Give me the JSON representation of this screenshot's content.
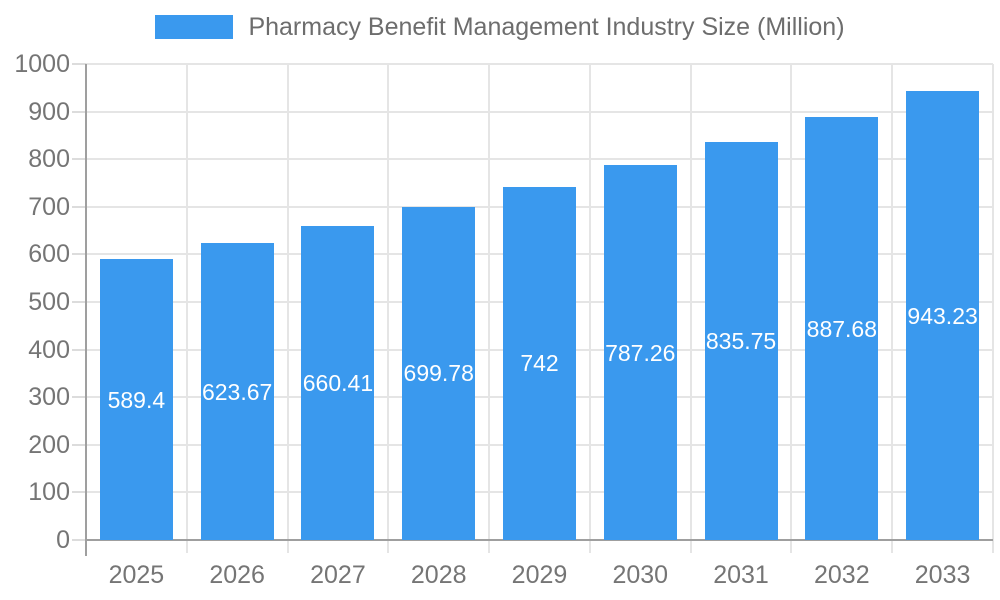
{
  "chart_data": {
    "type": "bar",
    "title": "Pharmacy Benefit Management Industry Size (Million)",
    "legend_position": "top",
    "categories": [
      "2025",
      "2026",
      "2027",
      "2028",
      "2029",
      "2030",
      "2031",
      "2032",
      "2033"
    ],
    "values": [
      589.4,
      623.67,
      660.41,
      699.78,
      742,
      787.26,
      835.75,
      887.68,
      943.23
    ],
    "value_labels": [
      "589.4",
      "623.67",
      "660.41",
      "699.78",
      "742",
      "787.26",
      "835.75",
      "887.68",
      "943.23"
    ],
    "xlabel": "",
    "ylabel": "",
    "ylim": [
      0,
      1000
    ],
    "ytick_step": 100,
    "ytick_labels": [
      "0",
      "100",
      "200",
      "300",
      "400",
      "500",
      "600",
      "700",
      "800",
      "900",
      "1000"
    ],
    "grid": true,
    "colors": {
      "bar": "#3a99ee",
      "bar_label": "#ffffff",
      "axis_text": "#757575",
      "legend_text": "#6d6d6d",
      "axis_line": "#9f9f9f",
      "grid_line": "#e5e5e5",
      "tick_line": "#dcdcdc",
      "background": "#ffffff"
    }
  }
}
